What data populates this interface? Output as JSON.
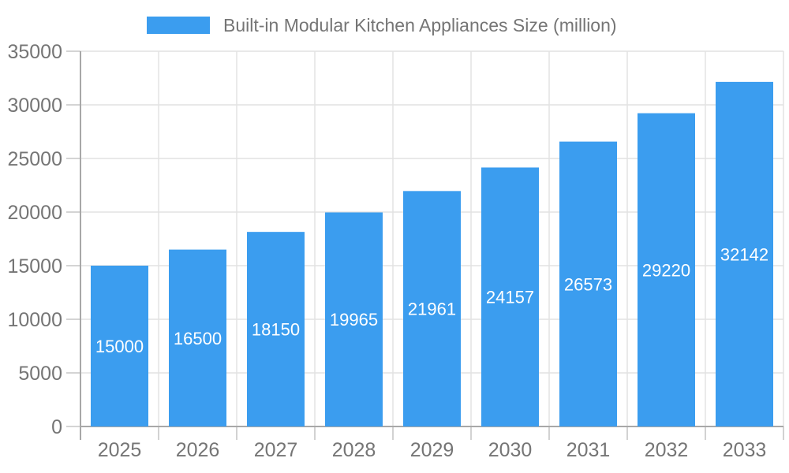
{
  "legend": {
    "label": "Built-in Modular Kitchen Appliances Size (million)"
  },
  "chart_data": {
    "type": "bar",
    "title": "Built-in Modular Kitchen Appliances Size (million)",
    "categories": [
      "2025",
      "2026",
      "2027",
      "2028",
      "2029",
      "2030",
      "2031",
      "2032",
      "2033"
    ],
    "values": [
      15000,
      16500,
      18150,
      19965,
      21961,
      24157,
      26573,
      29220,
      32142
    ],
    "bar_value_labels": [
      "15000",
      "16500",
      "18150",
      "19965",
      "21961",
      "24157",
      "26573",
      "29220",
      "32142"
    ],
    "xlabel": "",
    "ylabel": "",
    "ylim": [
      0,
      35000
    ],
    "ytick_step": 5000,
    "yticks": [
      0,
      5000,
      10000,
      15000,
      20000,
      25000,
      30000,
      35000
    ],
    "grid": "horizontal and vertical light gray gridlines",
    "legend_position": "top-center",
    "colors": {
      "bar": "#3B9DEF",
      "bar_label_text": "#ffffff",
      "grid_line": "#e2e2e2",
      "axis_line": "#a8a8a8",
      "tick_line": "#c6c6c6",
      "axis_text": "#757575",
      "legend_text": "#757575",
      "background": "#ffffff"
    }
  }
}
